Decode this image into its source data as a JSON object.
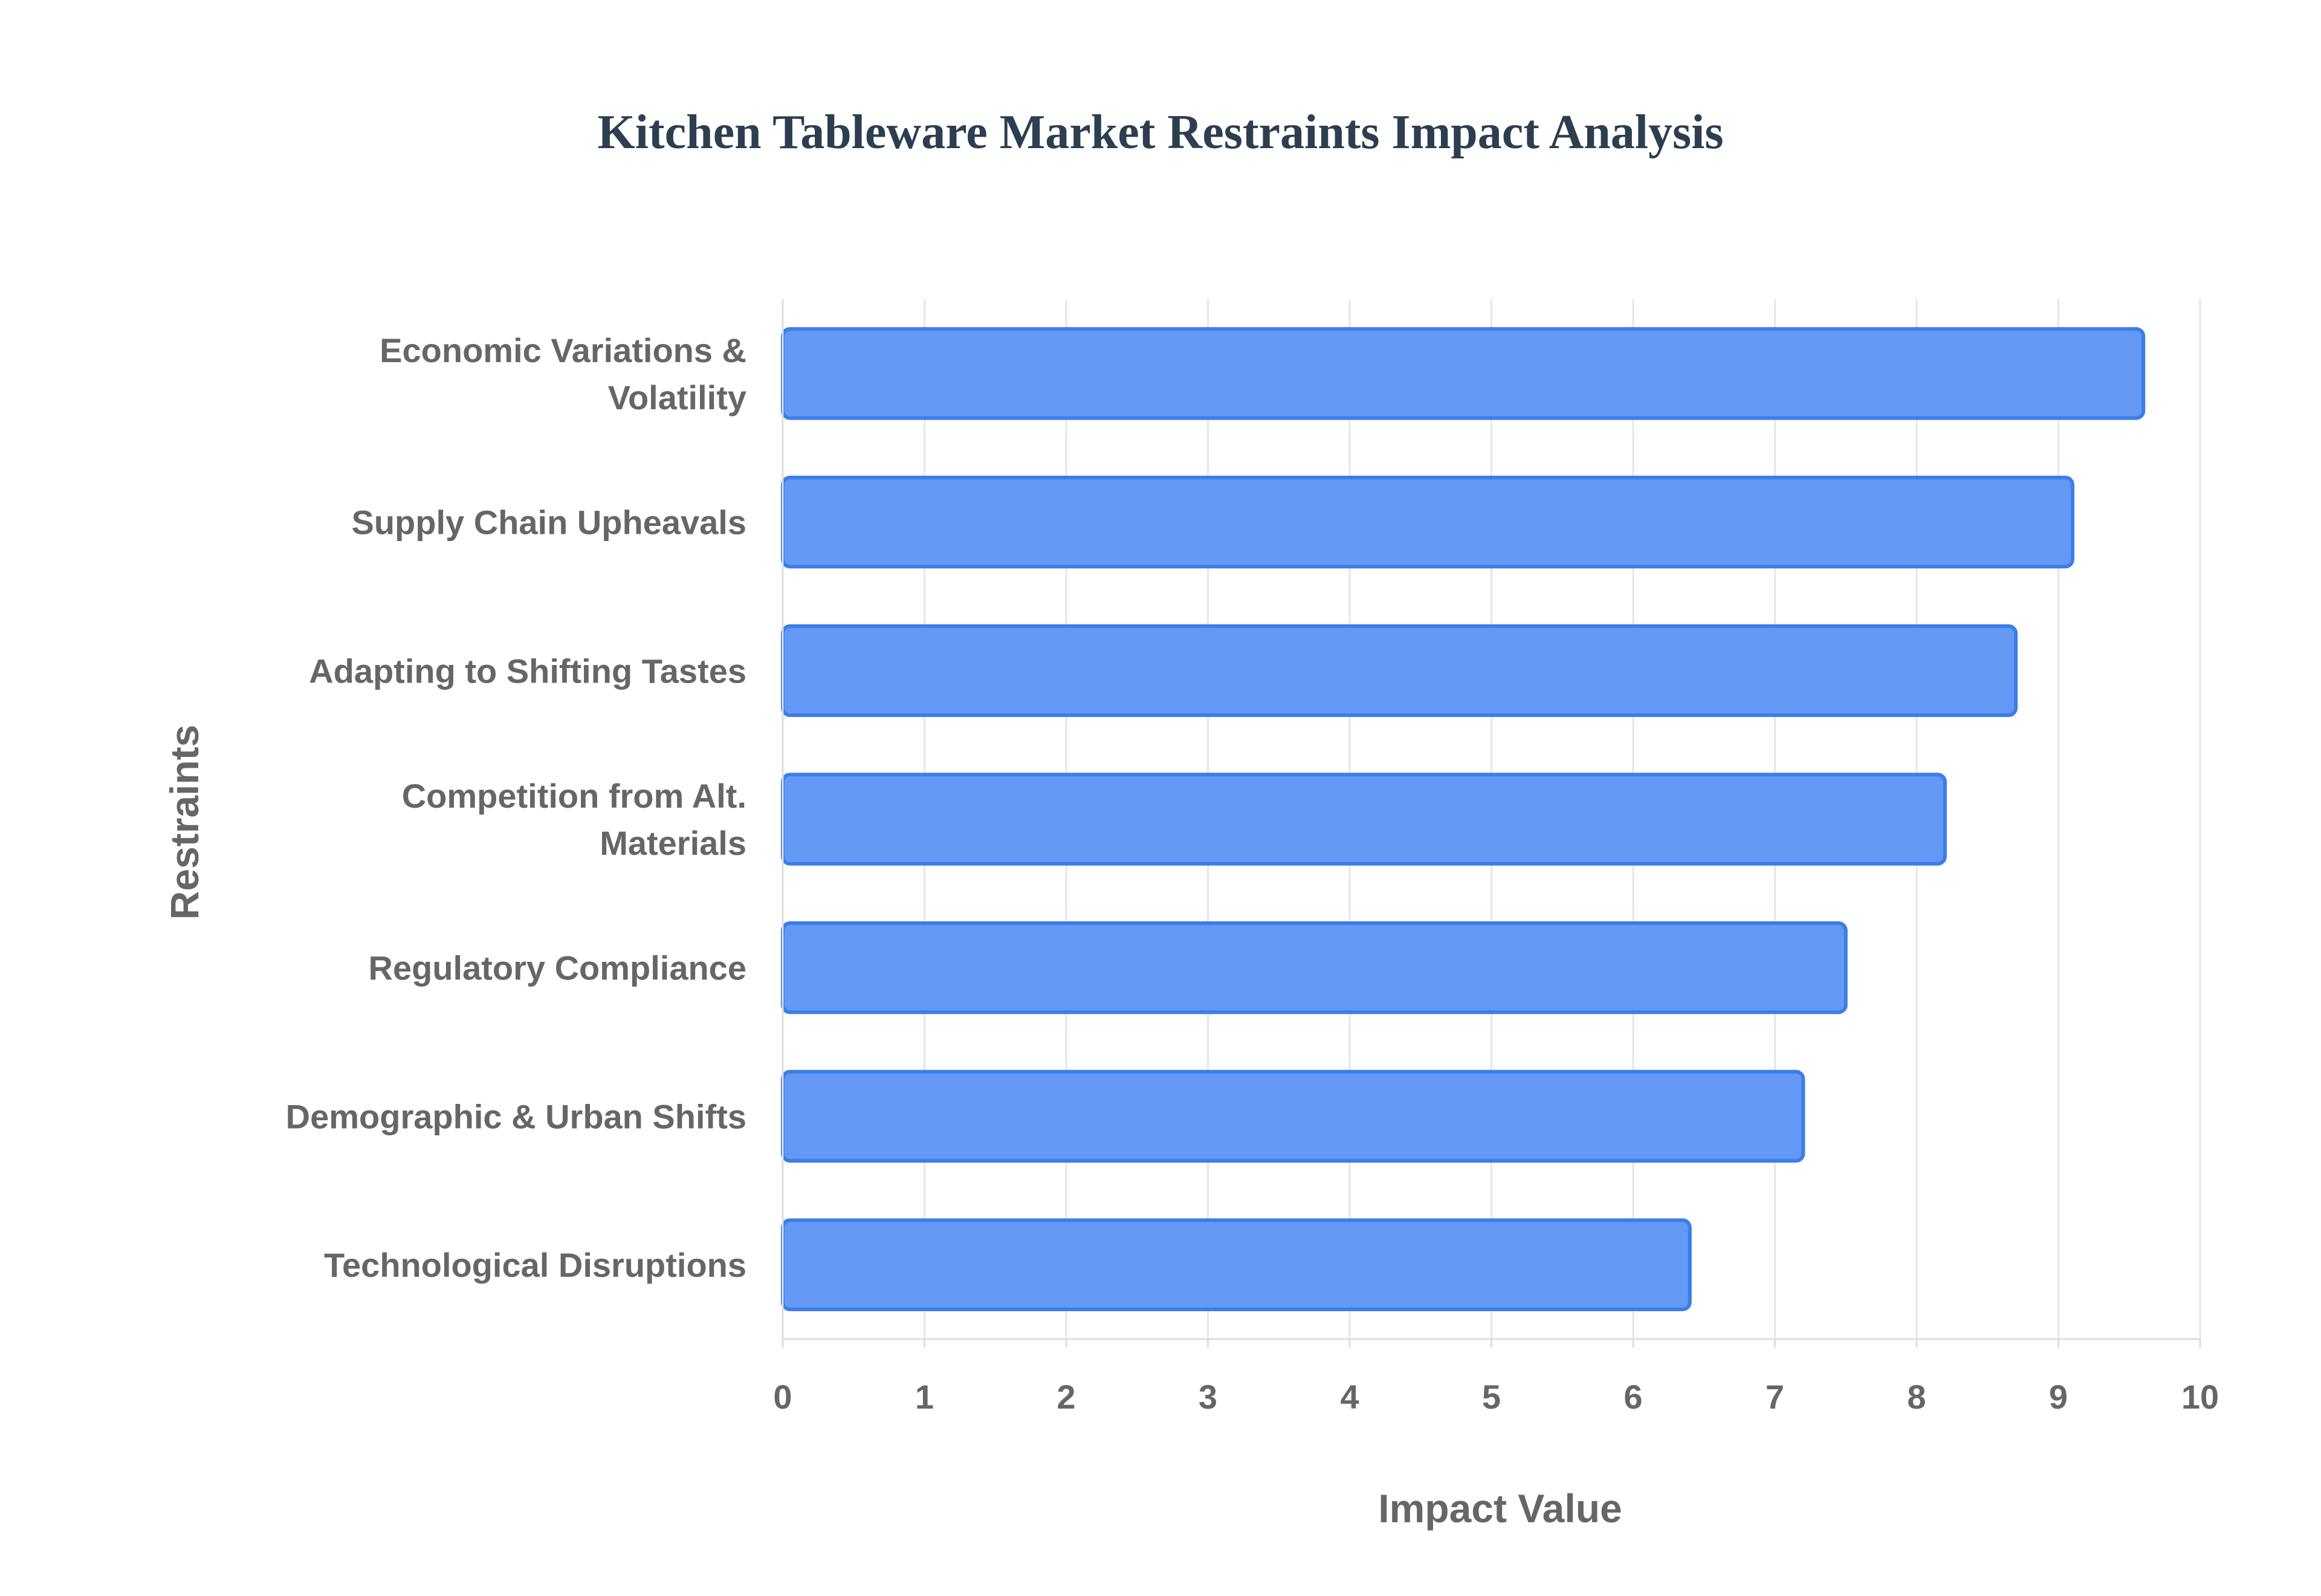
{
  "chart_data": {
    "type": "bar",
    "orientation": "horizontal",
    "title": "Kitchen Tableware Market Restraints Impact Analysis",
    "xlabel": "Impact Value",
    "ylabel": "Restraints",
    "xlim": [
      0,
      10
    ],
    "x_ticks": [
      "0",
      "1",
      "2",
      "3",
      "4",
      "5",
      "6",
      "7",
      "8",
      "9",
      "10"
    ],
    "grid": true,
    "bar_color": "#6399f5",
    "bar_border_color": "#3b7de9",
    "categories": [
      [
        "Economic Variations &",
        "Volatility"
      ],
      [
        "Supply Chain Upheavals"
      ],
      [
        "Adapting to Shifting Tastes"
      ],
      [
        "Competition from Alt.",
        "Materials"
      ],
      [
        "Regulatory Compliance"
      ],
      [
        "Demographic & Urban Shifts"
      ],
      [
        "Technological Disruptions"
      ]
    ],
    "values": [
      9.6,
      9.1,
      8.7,
      8.2,
      7.5,
      7.2,
      6.4
    ]
  }
}
